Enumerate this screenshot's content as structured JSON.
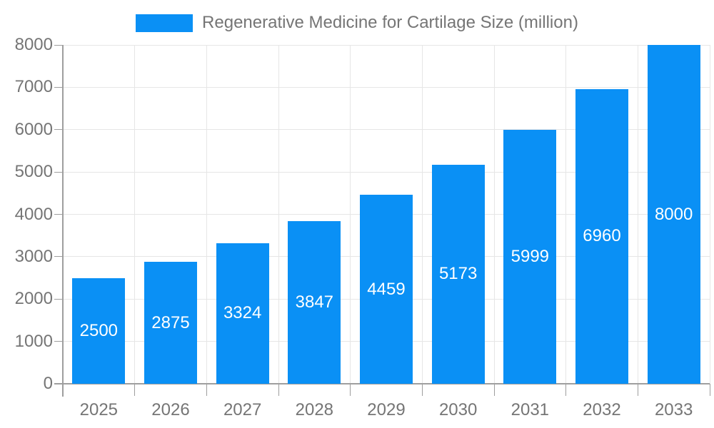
{
  "chart_data": {
    "type": "bar",
    "title": "Regenerative Medicine for Cartilage Size (million)",
    "categories": [
      "2025",
      "2026",
      "2027",
      "2028",
      "2029",
      "2030",
      "2031",
      "2032",
      "2033"
    ],
    "values": [
      2500,
      2875,
      3324,
      3847,
      4459,
      5173,
      5999,
      6960,
      8000
    ],
    "series_name": "Regenerative Medicine for Cartilage Size (million)",
    "xlabel": "",
    "ylabel": "",
    "ylim": [
      0,
      8000
    ],
    "ytick_step": 1000,
    "ytick_labels": [
      "0",
      "1000",
      "2000",
      "3000",
      "4000",
      "5000",
      "6000",
      "7000",
      "8000"
    ],
    "grid": true,
    "legend_position": "top-center",
    "bar_label_position": "inside-center",
    "colors": {
      "bar": "#0a90f5",
      "bar_value_text": "#ffffff",
      "axis_text": "#757575",
      "grid_line": "#e6e6e6",
      "axis_line": "#9e9e9e",
      "background": "#ffffff"
    }
  }
}
